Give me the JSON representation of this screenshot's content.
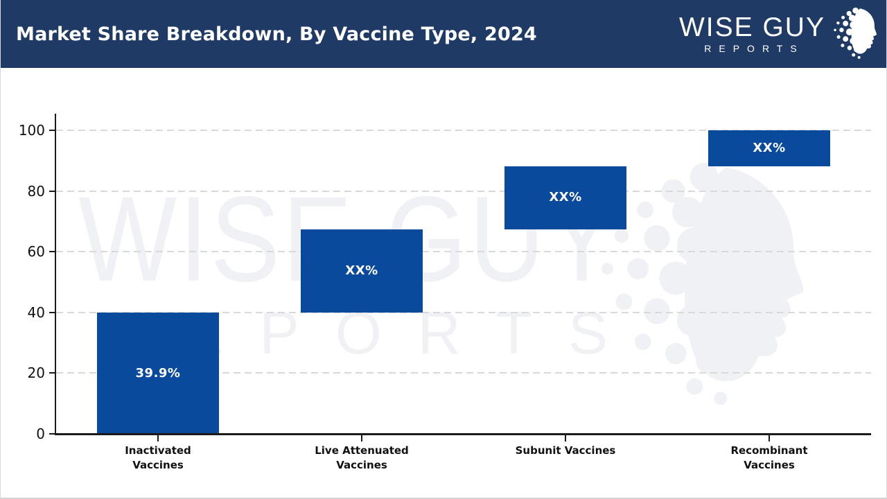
{
  "header": {
    "title": "Market Share Breakdown, By Vaccine Type, 2024",
    "logo": {
      "line1": "WISE GUY",
      "line2": "REPORTS"
    }
  },
  "watermark": {
    "line1": "WISE GUY",
    "line2": "REPORTS"
  },
  "colors": {
    "header_bg": "#203A66",
    "bar": "#0A4A9C",
    "grid": "#D9D9D9",
    "axis": "#1A1A1A",
    "bar_label_text": "#FFFFFF",
    "watermark": "#F0F1F4"
  },
  "chart_data": {
    "type": "bar",
    "subtype": "waterfall",
    "title": "Market Share Breakdown, By Vaccine Type, 2024",
    "xlabel": "",
    "ylabel": "",
    "ylim": [
      0,
      100
    ],
    "yticks": [
      0,
      20,
      40,
      60,
      80,
      100
    ],
    "grid": true,
    "legend": false,
    "bar_color": "#0A4A9C",
    "categories": [
      "Inactivated\nVaccines",
      "Live Attenuated\nVaccines",
      "Subunit Vaccines",
      "Recombinant\nVaccines"
    ],
    "segments": [
      {
        "category": "Inactivated Vaccines",
        "start": 0,
        "end": 39.9,
        "label": "39.9%"
      },
      {
        "category": "Live Attenuated Vaccines",
        "start": 39.9,
        "end": 67.4,
        "label": "XX%"
      },
      {
        "category": "Subunit Vaccines",
        "start": 67.4,
        "end": 88.2,
        "label": "XX%"
      },
      {
        "category": "Recombinant Vaccines",
        "start": 88.2,
        "end": 100,
        "label": "XX%"
      }
    ]
  }
}
